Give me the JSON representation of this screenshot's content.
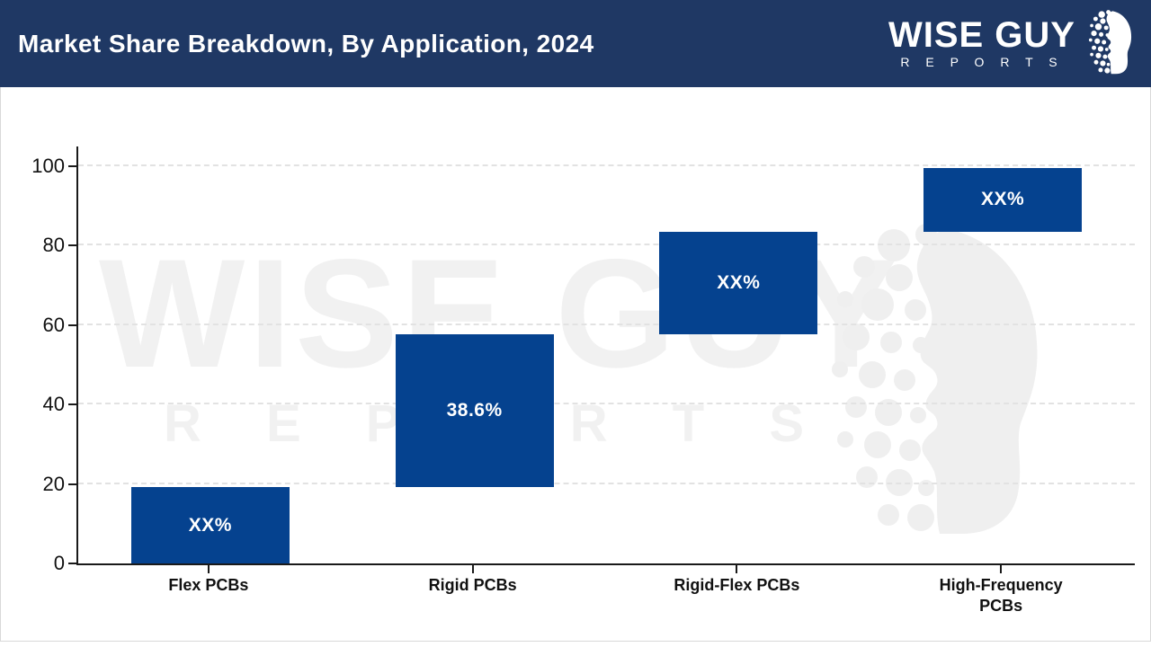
{
  "page": {
    "background": "#ffffff",
    "frame_border_color": "#d9d9d9"
  },
  "header": {
    "background": "#1F3864",
    "title": "Market Share Breakdown, By Application, 2024",
    "logo_line1": "WISE GUY",
    "logo_line2": "R E P O R T S"
  },
  "watermark": {
    "line1": "WISE GUY",
    "line2": "R E P O R T S"
  },
  "chart_data": {
    "type": "bar",
    "variant": "floating-waterfall",
    "title": "Market Share Breakdown, By Application, 2024",
    "categories": [
      "Flex PCBs",
      "Rigid PCBs",
      "Rigid-Flex PCBs",
      "High-Frequency PCBs"
    ],
    "segments": [
      {
        "category": "Flex PCBs",
        "start": 0,
        "end": 19.2,
        "label": "XX%"
      },
      {
        "category": "Rigid PCBs",
        "start": 19.2,
        "end": 57.8,
        "label": "38.6%",
        "value": 38.6
      },
      {
        "category": "Rigid-Flex PCBs",
        "start": 57.8,
        "end": 83.5,
        "label": "XX%"
      },
      {
        "category": "High-Frequency PCBs",
        "start": 83.5,
        "end": 99.6,
        "label": "XX%"
      }
    ],
    "xlabel": "",
    "ylabel": "",
    "ylim": [
      0,
      105
    ],
    "yticks": [
      0,
      20,
      40,
      60,
      80,
      100
    ],
    "grid": "horizontal-dashed",
    "legend": "none",
    "bar_color": "#05428F",
    "bar_label_color": "#FFFFFF",
    "axis_color": "#1a1a1a",
    "gridline_color": "#e2e2e2",
    "watermark_color": "#f1f1f1"
  }
}
